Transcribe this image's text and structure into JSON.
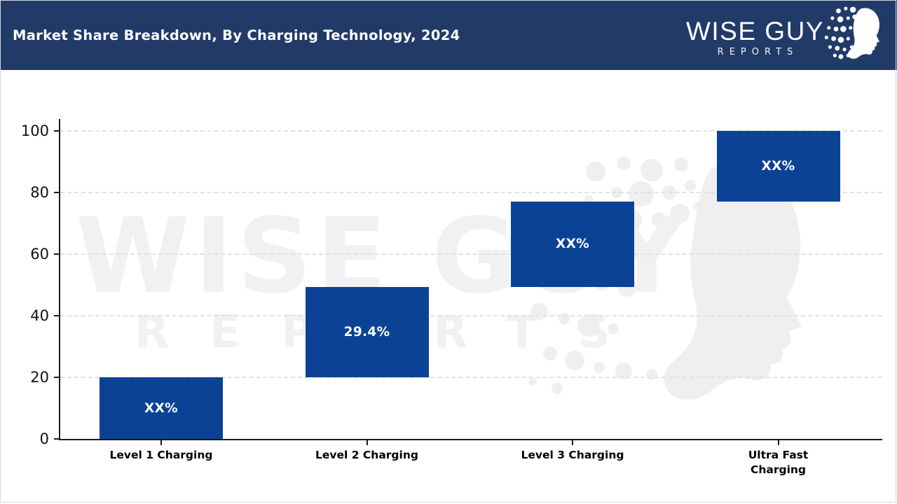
{
  "header": {
    "title": "Market Share Breakdown, By Charging Technology, 2024",
    "logo": {
      "wordmark": "WISE GUY",
      "subtitle": "REPORTS"
    }
  },
  "watermark": {
    "wordmark": "WISE GUY",
    "subtitle": "REPORTS"
  },
  "colors": {
    "header_bg": "#223A67",
    "bar_fill": "#0B4296",
    "bar_label": "#FFFFFF",
    "axis": "#1A1A1A",
    "tick_label": "#111111",
    "grid": "#E1E1E1",
    "watermark": "#F1F1F4",
    "page_bg": "#FFFFFF",
    "page_border": "#D9D9D9"
  },
  "chart_data": {
    "type": "bar",
    "subtype": "floating-waterfall",
    "title": "Market Share Breakdown, By Charging Technology, 2024",
    "categories": [
      "Level 1 Charging",
      "Level 2 Charging",
      "Level 3 Charging",
      "Ultra Fast Charging"
    ],
    "bars": [
      {
        "category": "Level 1 Charging",
        "start": 0,
        "end": 20,
        "label": "XX%"
      },
      {
        "category": "Level 2 Charging",
        "start": 20,
        "end": 49.4,
        "label": "29.4%"
      },
      {
        "category": "Level 3 Charging",
        "start": 49.4,
        "end": 77,
        "label": "XX%"
      },
      {
        "category": "Ultra Fast Charging",
        "start": 77,
        "end": 100,
        "label": "XX%"
      }
    ],
    "y_ticks": [
      0,
      20,
      40,
      60,
      80,
      100
    ],
    "ylim": [
      0,
      104
    ],
    "xlabel": "",
    "ylabel": "",
    "grid": "horizontal-dashed",
    "legend": "none",
    "bar_color": "#0B4296",
    "bar_value_label_color": "#FFFFFF"
  }
}
